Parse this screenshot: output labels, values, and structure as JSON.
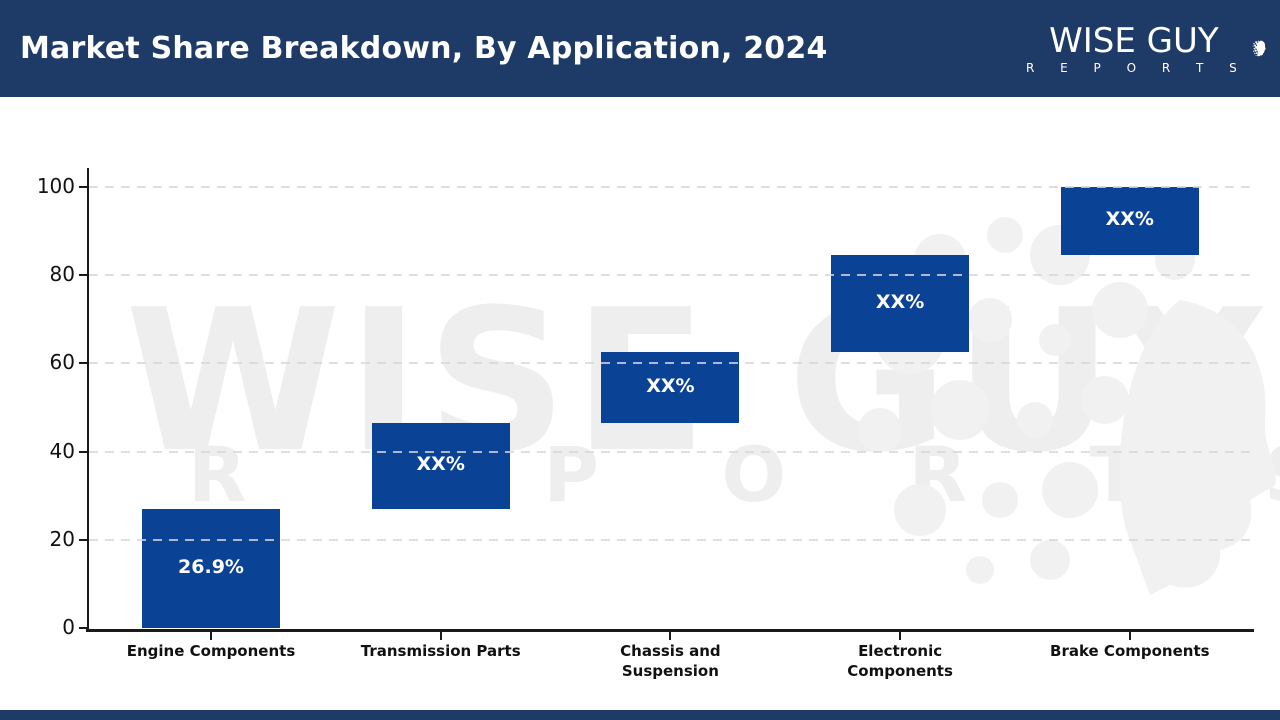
{
  "header": {
    "title": "Market Share Breakdown, By Application, 2024",
    "logo": {
      "wordmark": "WISE GUY",
      "subtext": "R E P O R T S"
    },
    "bg_color": "#1e3a66"
  },
  "watermark": {
    "wordmark": "WISE GUY",
    "subtext": "R E P O R T S"
  },
  "chart_data": {
    "type": "bar",
    "subtype": "waterfall",
    "title": "Market Share Breakdown, By Application, 2024",
    "categories": [
      "Engine Components",
      "Transmission Parts",
      "Chassis and Suspension",
      "Electronic Components",
      "Brake Components"
    ],
    "category_label_lines": [
      [
        "Engine Components"
      ],
      [
        "Transmission Parts"
      ],
      [
        "Chassis and",
        "Suspension"
      ],
      [
        "Electronic",
        "Components"
      ],
      [
        "Brake Components"
      ]
    ],
    "segments": [
      {
        "category": "Engine Components",
        "start": 0,
        "end": 26.9,
        "value": 26.9,
        "label": "26.9%"
      },
      {
        "category": "Transmission Parts",
        "start": 26.9,
        "end": 46.4,
        "value": 19.5,
        "label": "XX%"
      },
      {
        "category": "Chassis and Suspension",
        "start": 46.4,
        "end": 62.5,
        "value": 16.1,
        "label": "XX%"
      },
      {
        "category": "Electronic Components",
        "start": 62.5,
        "end": 84.5,
        "value": 22.0,
        "label": "XX%"
      },
      {
        "category": "Brake Components",
        "start": 84.5,
        "end": 100,
        "value": 15.5,
        "label": "XX%"
      }
    ],
    "yticks": [
      0,
      20,
      40,
      60,
      80,
      100
    ],
    "ylim": [
      0,
      104
    ],
    "grid": "dashed horizontal, light gray, drawn over bars",
    "legend": "none",
    "xlabel": "",
    "ylabel": "",
    "colors": {
      "bar": "#0a4296",
      "bar_label": "#ffffff",
      "axis": "#1a1a1a",
      "tick_text": "#111111",
      "gridline": "#d7d7d7",
      "header_bg": "#1e3a66",
      "watermark": "#eeeeee"
    }
  }
}
